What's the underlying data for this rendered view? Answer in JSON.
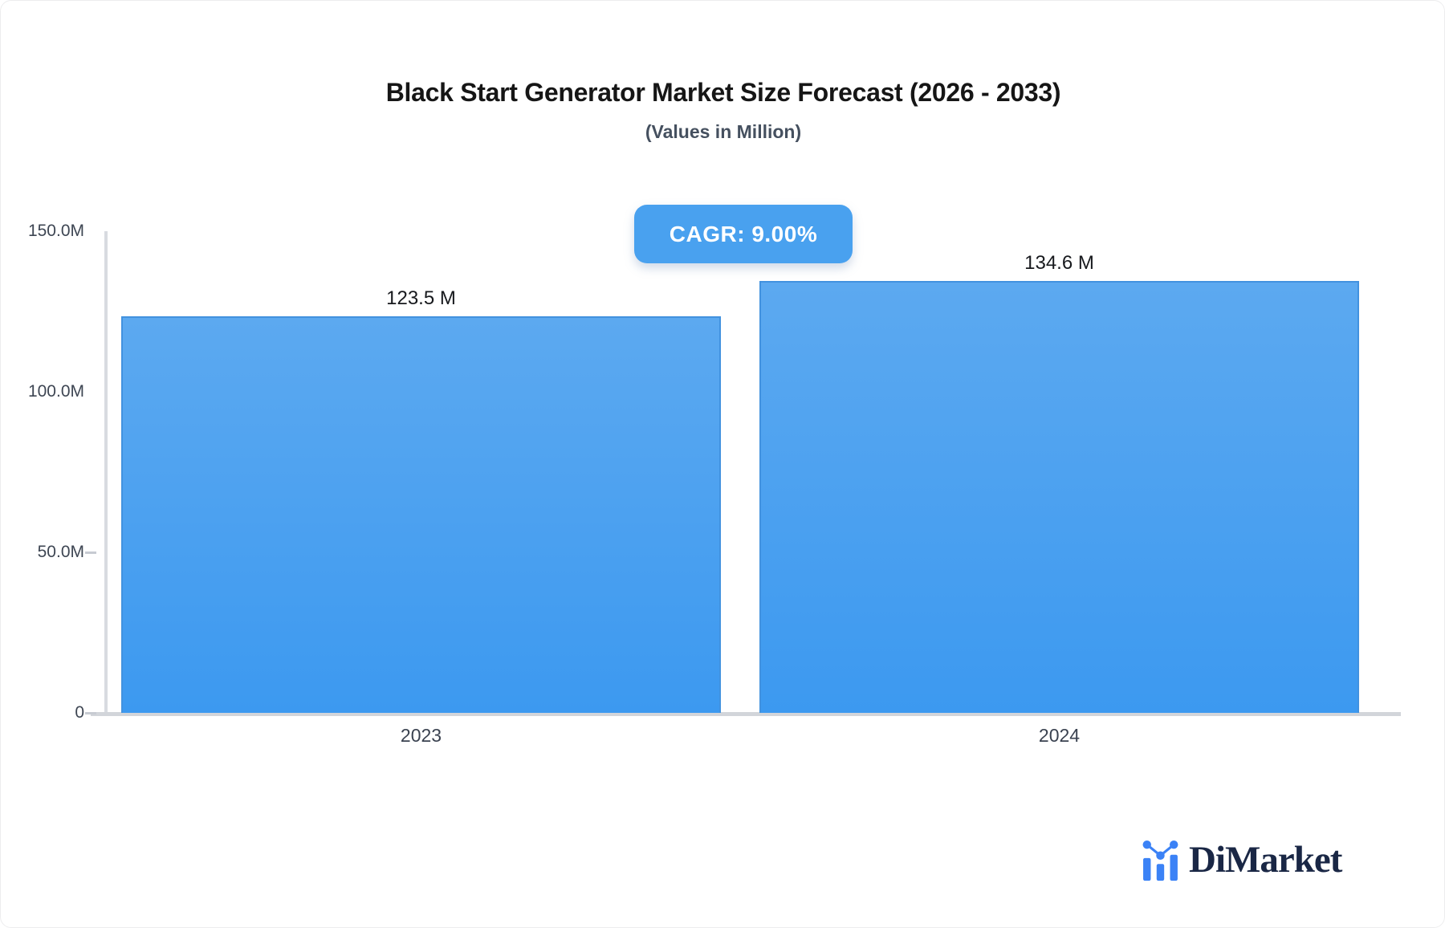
{
  "header": {
    "title": "Black Start Generator Market Size Forecast (2026 - 2033)",
    "subtitle": "(Values in Million)"
  },
  "badge": {
    "label": "CAGR: 9.00%",
    "cagr_value": "9.00%"
  },
  "chart_data": {
    "type": "bar",
    "title": "Black Start Generator Market Size Forecast (2026 - 2033)",
    "subtitle": "(Values in Million)",
    "categories": [
      "2023",
      "2024"
    ],
    "values": [
      123.5,
      134.6
    ],
    "value_labels": [
      "123.5 M",
      "134.6 M"
    ],
    "unit": "M",
    "ylim": [
      0,
      150
    ],
    "yticks": [
      {
        "value": 150,
        "label": "150.0M",
        "dash": false
      },
      {
        "value": 100,
        "label": "100.0M",
        "dash": false
      },
      {
        "value": 50,
        "label": "50.0M",
        "dash": true
      },
      {
        "value": 0,
        "label": "0",
        "dash": true
      }
    ],
    "grid": false,
    "legend": "none",
    "annotations": [
      "CAGR: 9.00%"
    ]
  },
  "colors": {
    "badge_bg": "#49A1EF",
    "badge_text": "#FFFFFF",
    "bar_gradient_top": "#5CA9F0",
    "bar_gradient_bottom": "#3C99F0",
    "bar_border": "#4292DF",
    "axis_line": "#D8DBE0",
    "baseline": "#D2D5DA",
    "tick_label": "#3E4653",
    "value_label": "#17191D",
    "category_label": "#3A4250",
    "title": "#161616",
    "subtitle": "#45505F",
    "logo_icon": "#3B82F6",
    "logo_text": "#1A2745"
  },
  "logo": {
    "brand": "DiMarket",
    "icon": "bar-line-chart-icon"
  }
}
